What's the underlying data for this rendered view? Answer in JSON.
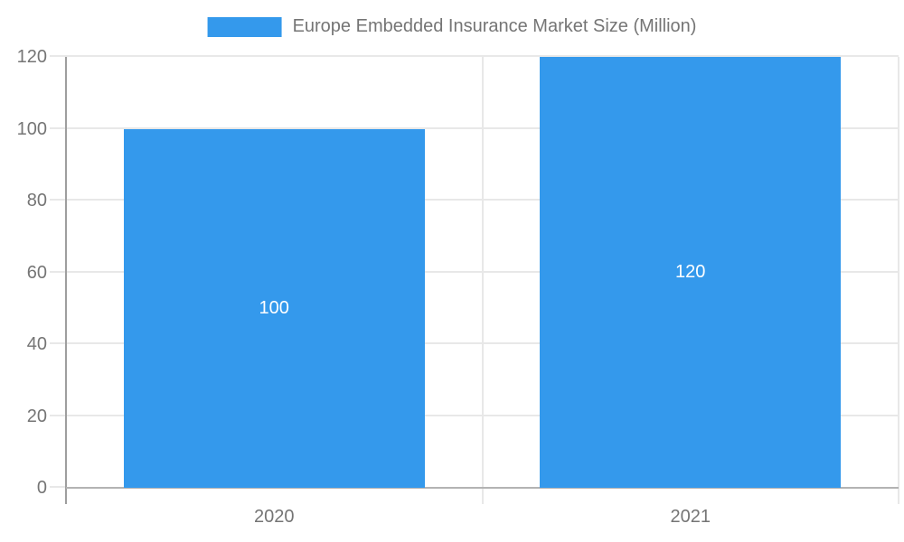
{
  "chart_data": {
    "type": "bar",
    "title": "Europe Embedded Insurance Market Size (Million)",
    "categories": [
      "2020",
      "2021"
    ],
    "values": [
      100,
      120
    ],
    "value_labels": [
      "100",
      "120"
    ],
    "xlabel": "",
    "ylabel": "",
    "ylim": [
      0,
      120
    ],
    "yticks": [
      0,
      20,
      40,
      60,
      80,
      100,
      120
    ],
    "grid": true,
    "legend_position": "top",
    "colors": {
      "bar": "#3499EC",
      "value_label": "#ffffff",
      "axis_text": "#757575",
      "gridline": "#e8e8e8",
      "axis_line_y": "#9e9e9e",
      "axis_line_x": "#b3b3b3"
    }
  }
}
